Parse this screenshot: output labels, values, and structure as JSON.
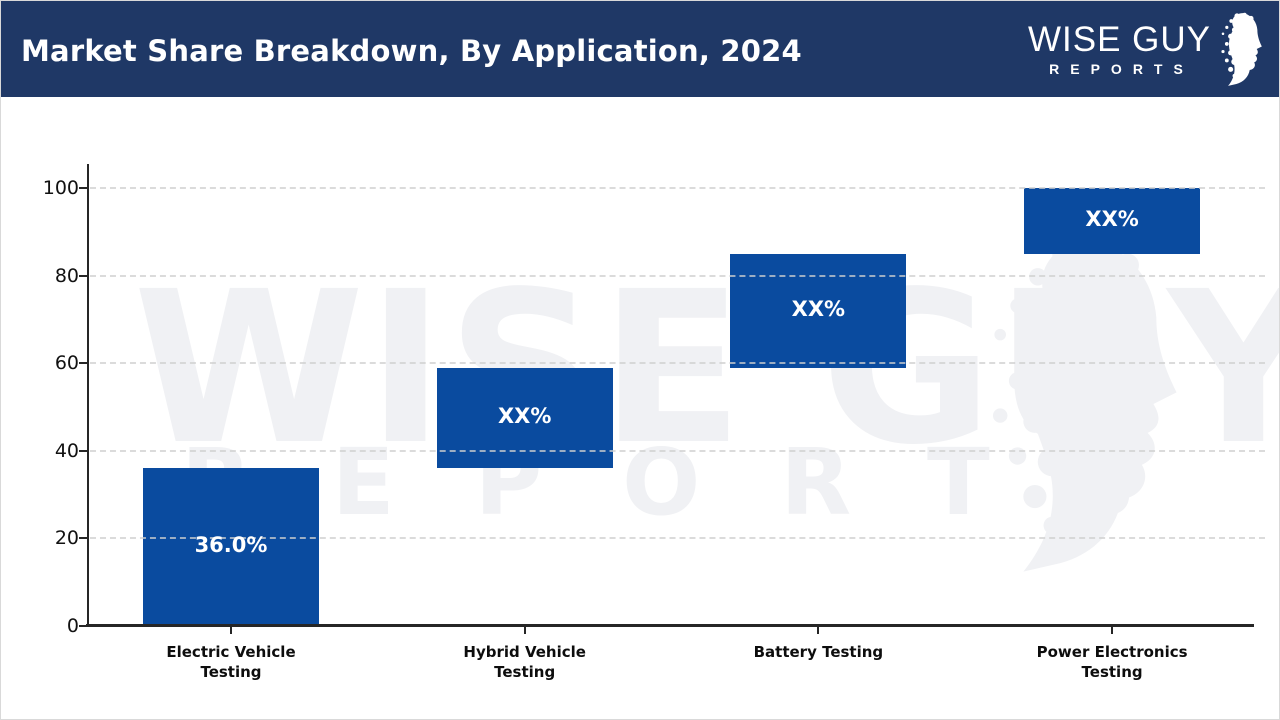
{
  "header": {
    "title": "Market Share Breakdown, By Application, 2024",
    "logo": {
      "brand": "WISE GUY",
      "sub": "REPORTS"
    }
  },
  "watermark": {
    "brand": "WISE GUY",
    "sub": "REPORTS"
  },
  "colors": {
    "header_bg": "#1F3866",
    "bar": "#0A4B9F",
    "bar_label_text": "#FFFFFF",
    "grid": "#CFCFCF",
    "spine": "#262626",
    "axis_text": "#111111",
    "watermark": "#F0F1F4"
  },
  "chart_data": {
    "type": "bar",
    "subtype": "waterfall",
    "title": "Market Share Breakdown, By Application, 2024",
    "categories": [
      "Electric Vehicle Testing",
      "Hybrid Vehicle Testing",
      "Battery Testing",
      "Power Electronics Testing"
    ],
    "category_label_lines": [
      [
        "Electric Vehicle",
        "Testing"
      ],
      [
        "Hybrid Vehicle",
        "Testing"
      ],
      [
        "Battery Testing"
      ],
      [
        "Power Electronics",
        "Testing"
      ]
    ],
    "bars": [
      {
        "category": "Electric Vehicle Testing",
        "start": 0,
        "end": 36,
        "label": "36.0%"
      },
      {
        "category": "Hybrid Vehicle Testing",
        "start": 36,
        "end": 59,
        "label": "XX%"
      },
      {
        "category": "Battery Testing",
        "start": 59,
        "end": 85,
        "label": "XX%"
      },
      {
        "category": "Power Electronics Testing",
        "start": 85,
        "end": 100,
        "label": "XX%"
      }
    ],
    "xlabel": "",
    "ylabel": "",
    "ylim": [
      0,
      100
    ],
    "yticks": [
      0,
      20,
      40,
      60,
      80,
      100
    ],
    "grid": true,
    "legend": false
  }
}
